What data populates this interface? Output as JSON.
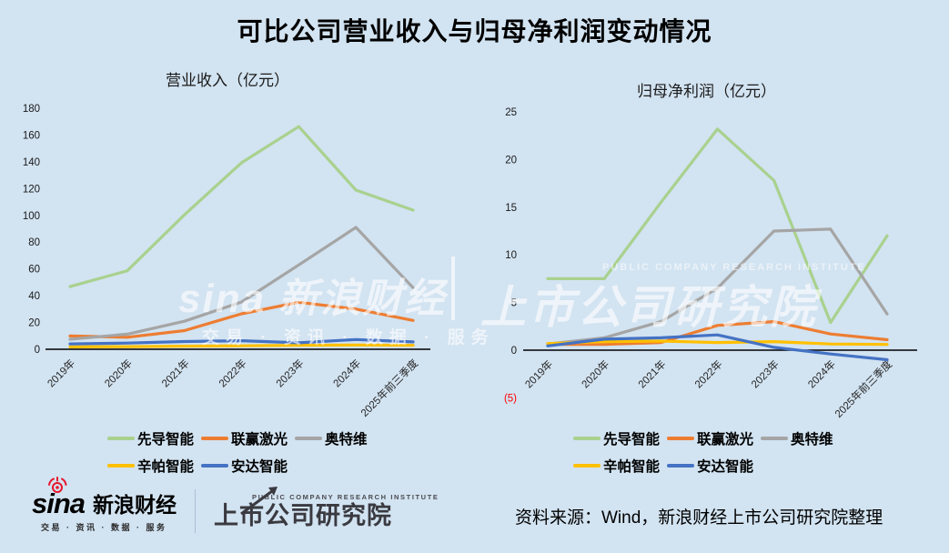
{
  "title": "可比公司营业收入与归母净利润变动情况",
  "source": "资料来源：Wind，新浪财经上市公司研究院整理",
  "colors": {
    "background": "#D2E3F1",
    "axis": "#000000",
    "tick_text": "#1a1a1a",
    "negative_tick": "#FF0000",
    "series_xiandao": "#A9D18E",
    "series_lianying": "#ED7D31",
    "series_aotewei": "#A5A5A5",
    "series_xinpa": "#FFC000",
    "series_anda": "#4472C4"
  },
  "watermark": {
    "left_main": "sina 新浪财经",
    "left_sub": "交易 · 资讯 · 数据 · 服务",
    "right_en": "PUBLIC COMPANY RESEARCH INSTITUTE",
    "right_main": "上市公司研究院"
  },
  "footer": {
    "sina_word": "sina",
    "sina_brand": "新浪财经",
    "sina_tagline": "交易 · 资讯 · 数据 · 服务",
    "institute_en": "PUBLIC COMPANY RESEARCH INSTITUTE",
    "institute_cn": "上市公司研究院"
  },
  "chart_data": [
    {
      "type": "line",
      "title": "营业收入（亿元）",
      "categories": [
        "2019年",
        "2020年",
        "2021年",
        "2022年",
        "2023年",
        "2024年",
        "2025年前三季度"
      ],
      "series": [
        {
          "name": "先导智能",
          "color": "#A9D18E",
          "values": [
            46.8,
            58.6,
            100.4,
            139.3,
            166.3,
            118.9,
            103.9
          ]
        },
        {
          "name": "联赢激光",
          "color": "#ED7D31",
          "values": [
            9.9,
            9.0,
            13.9,
            26.5,
            35.1,
            30.0,
            21.5
          ]
        },
        {
          "name": "奥特维",
          "color": "#A5A5A5",
          "values": [
            7.5,
            11.3,
            20.9,
            35.3,
            63.0,
            91.0,
            46.0
          ]
        },
        {
          "name": "辛帕智能",
          "color": "#FFC000",
          "values": [
            1.8,
            2.0,
            2.3,
            2.6,
            3.0,
            3.2,
            3.0
          ]
        },
        {
          "name": "安达智能",
          "color": "#4472C4",
          "values": [
            4.0,
            4.6,
            5.8,
            6.4,
            4.8,
            7.3,
            5.5
          ]
        }
      ],
      "ylim": [
        0,
        180
      ],
      "yticks": [
        {
          "label": "180",
          "value": 180
        },
        {
          "label": "160",
          "value": 160
        },
        {
          "label": "140",
          "value": 140
        },
        {
          "label": "120",
          "value": 120
        },
        {
          "label": "100",
          "value": 100
        },
        {
          "label": "80",
          "value": 80
        },
        {
          "label": "60",
          "value": 60
        },
        {
          "label": "40",
          "value": 40
        },
        {
          "label": "20",
          "value": 20
        },
        {
          "label": "0",
          "value": 0
        }
      ],
      "grid": false,
      "legend_position": "bottom"
    },
    {
      "type": "line",
      "title": "归母净利润（亿元）",
      "categories": [
        "2019年",
        "2020年",
        "2021年",
        "2022年",
        "2023年",
        "2024年",
        "2025年前三季度"
      ],
      "series": [
        {
          "name": "先导智能",
          "color": "#A9D18E",
          "values": [
            7.5,
            7.5,
            15.5,
            23.2,
            17.8,
            2.9,
            12.0
          ]
        },
        {
          "name": "联赢激光",
          "color": "#ED7D31",
          "values": [
            0.6,
            0.6,
            0.8,
            2.6,
            3.0,
            1.7,
            1.1
          ]
        },
        {
          "name": "奥特维",
          "color": "#A5A5A5",
          "values": [
            0.65,
            1.3,
            3.0,
            6.5,
            12.5,
            12.7,
            3.8
          ]
        },
        {
          "name": "辛帕智能",
          "color": "#FFC000",
          "values": [
            0.7,
            0.9,
            0.95,
            0.8,
            0.9,
            0.65,
            0.6
          ]
        },
        {
          "name": "安达智能",
          "color": "#4472C4",
          "values": [
            0.45,
            1.15,
            1.3,
            1.6,
            0.3,
            -0.4,
            -1.0
          ]
        }
      ],
      "ylim": [
        -5,
        25
      ],
      "yticks": [
        {
          "label": "25",
          "value": 25
        },
        {
          "label": "20",
          "value": 20
        },
        {
          "label": "15",
          "value": 15
        },
        {
          "label": "10",
          "value": 10
        },
        {
          "label": "5",
          "value": 5
        },
        {
          "label": "0",
          "value": 0
        },
        {
          "label": "(5)",
          "value": -5,
          "color": "#FF0000"
        }
      ],
      "grid": false,
      "legend_position": "bottom"
    }
  ]
}
